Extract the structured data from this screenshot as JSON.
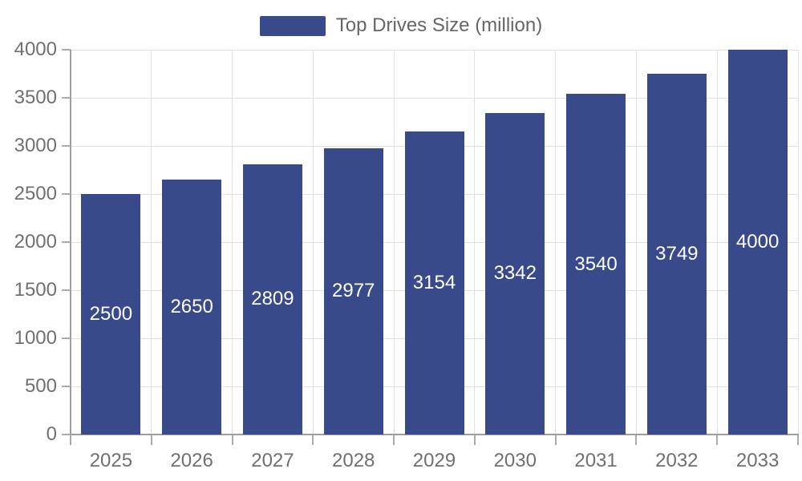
{
  "legend": {
    "label": "Top Drives Size (million)"
  },
  "chart_data": {
    "type": "bar",
    "title": "Top Drives Size (million)",
    "categories": [
      "2025",
      "2026",
      "2027",
      "2028",
      "2029",
      "2030",
      "2031",
      "2032",
      "2033"
    ],
    "values": [
      2500,
      2650,
      2809,
      2977,
      3154,
      3342,
      3540,
      3749,
      4000
    ],
    "series": [
      {
        "name": "Top Drives Size (million)",
        "values": [
          2500,
          2650,
          2809,
          2977,
          3154,
          3342,
          3540,
          3749,
          4000
        ]
      }
    ],
    "xlabel": "",
    "ylabel": "",
    "ylim": [
      0,
      4000
    ],
    "yticks": [
      0,
      500,
      1000,
      1500,
      2000,
      2500,
      3000,
      3500,
      4000
    ],
    "grid": true,
    "legend_position": "top-center",
    "value_labels": "inside-middle"
  },
  "colors": {
    "bar": "#394a8b",
    "grid": "#e2e2e2",
    "axis": "#9e9e9e",
    "tick": "#ababab",
    "tick_text": "#707070",
    "legend_text": "#666666",
    "value_text": "#ffffff",
    "background": "#ffffff"
  }
}
